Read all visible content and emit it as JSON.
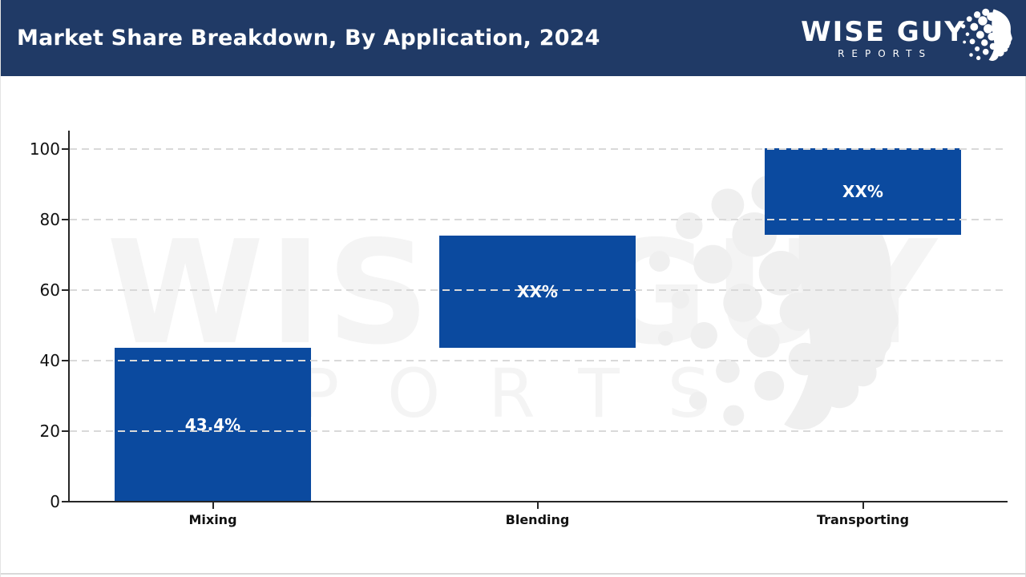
{
  "header": {
    "title": "Market Share Breakdown, By Application, 2024",
    "bg_color": "#203A66",
    "logo": {
      "primary": "WISE GUY",
      "secondary": "REPORTS"
    }
  },
  "watermark": {
    "primary": "WISE GUY",
    "secondary": "REPORTS"
  },
  "chart_data": {
    "type": "bar",
    "subtype": "waterfall",
    "title": "Market Share Breakdown, By Application, 2024",
    "categories": [
      "Mixing",
      "Blending",
      "Transporting"
    ],
    "series": [
      {
        "name": "Market Share",
        "segments": [
          {
            "category": "Mixing",
            "start": 0,
            "end": 43.4,
            "label": "43.4%"
          },
          {
            "category": "Blending",
            "start": 43.4,
            "end": 75.2,
            "label": "XX%"
          },
          {
            "category": "Transporting",
            "start": 75.4,
            "end": 100,
            "label": "XX%"
          }
        ]
      }
    ],
    "xlabel": "",
    "ylabel": "",
    "ylim": [
      0,
      105
    ],
    "yticks": [
      0,
      20,
      40,
      60,
      80,
      100
    ],
    "grid": "horizontal-dashed-over-bars",
    "legend": "none",
    "bar_color": "#0B4A9F",
    "bar_label_color": "#ffffff",
    "axis_color": "#262626",
    "grid_color": "#d9d9d9"
  }
}
